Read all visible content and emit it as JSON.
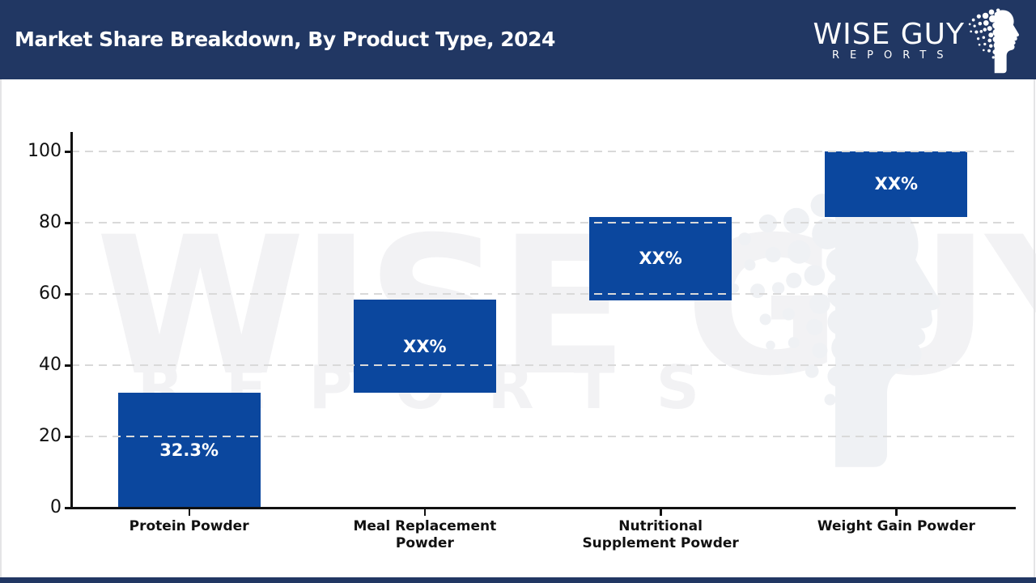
{
  "header": {
    "title": "Market Share Breakdown, By Product Type, 2024",
    "bg_color": "#213763",
    "logo": {
      "line1": "WISE GUY",
      "line2": "REPORTS",
      "head_icon": "dotted-face-profile"
    }
  },
  "watermark": {
    "line1": "WISE GUY",
    "line2": "REPORTS",
    "head_icon": "dotted-face-profile"
  },
  "chart_data": {
    "type": "bar",
    "subtype": "waterfall",
    "title": "Market Share Breakdown, By Product Type, 2024",
    "categories": [
      "Protein Powder",
      "Meal Replacement Powder",
      "Nutritional Supplement Powder",
      "Weight Gain Powder"
    ],
    "categories_display": [
      "Protein Powder",
      "Meal Replacement\nPowder",
      "Nutritional\nSupplement Powder",
      "Weight Gain Powder"
    ],
    "segments": [
      {
        "category": "Protein Powder",
        "start": 0,
        "end": 32.3,
        "label": "32.3%"
      },
      {
        "category": "Meal Replacement Powder",
        "start": 32.3,
        "end": 58.3,
        "label": "XX%"
      },
      {
        "category": "Nutritional Supplement Powder",
        "start": 58.2,
        "end": 81.6,
        "label": "XX%"
      },
      {
        "category": "Weight Gain Powder",
        "start": 81.7,
        "end": 100,
        "label": "XX%"
      }
    ],
    "xlabel": "",
    "ylabel": "",
    "ylim": [
      0,
      100
    ],
    "yticks": [
      0,
      20,
      40,
      60,
      80,
      100
    ],
    "grid": "horizontal-dashed",
    "legend": "none",
    "bar_color": "#0b479e",
    "bar_label_color": "#ffffff",
    "axis_color": "#111111",
    "gridline_color": "#d9d9d9"
  }
}
